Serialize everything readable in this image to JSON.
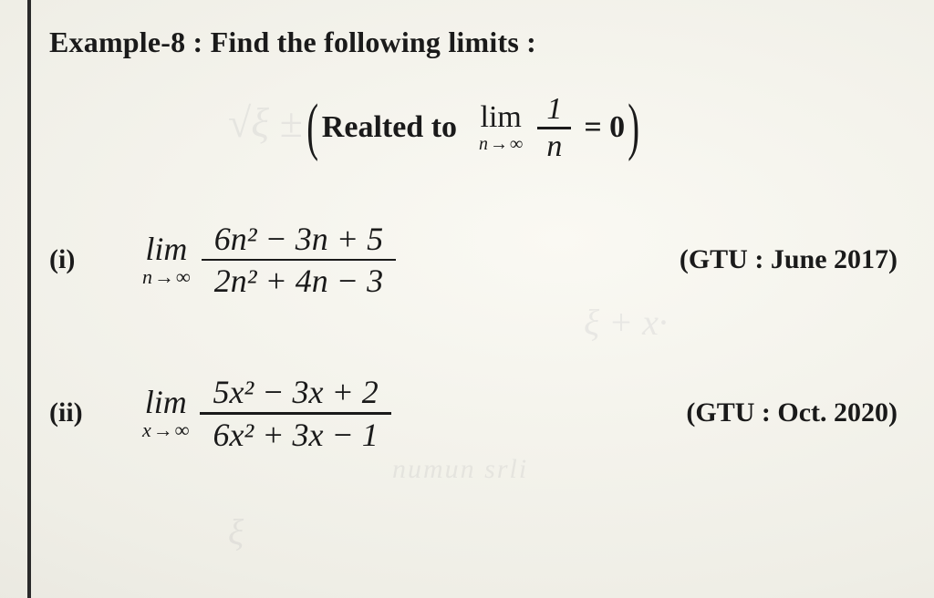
{
  "page": {
    "background_stops": [
      "#faf9f3",
      "#efeee6",
      "#e1dfd7"
    ],
    "margin_rule_color": "#2a2a2a",
    "text_color": "#1a1a1a",
    "font_family": "Times New Roman"
  },
  "title": {
    "label_bold": "Example-8 :",
    "text": "Find the following limits :",
    "fontsize": 32,
    "weight": 700
  },
  "subtitle": {
    "lead": "Realted to",
    "lim_top": "lim",
    "lim_var": "n",
    "lim_target": "∞",
    "frac_num": "1",
    "frac_den": "n",
    "tail": "= 0",
    "paren_fontsize": 70,
    "body_fontsize": 34
  },
  "problems": [
    {
      "roman": "(i)",
      "lim_top": "lim",
      "lim_var": "n",
      "lim_target": "∞",
      "frac_num": "6n² − 3n + 5",
      "frac_den": "2n² + 4n − 3",
      "attrib": "(GTU : June 2017)",
      "expr_fontsize": 36
    },
    {
      "roman": "(ii)",
      "lim_top": "lim",
      "lim_var": "x",
      "lim_target": "∞",
      "frac_num": "5x² − 3x + 2",
      "frac_den": "6x² + 3x − 1",
      "attrib": "(GTU : Oct. 2020)",
      "expr_fontsize": 36
    }
  ],
  "ghosts": {
    "g1": "√ξ ±",
    "g2": "ξ + x·",
    "g3": "numun srli",
    "g4": "ξ"
  }
}
